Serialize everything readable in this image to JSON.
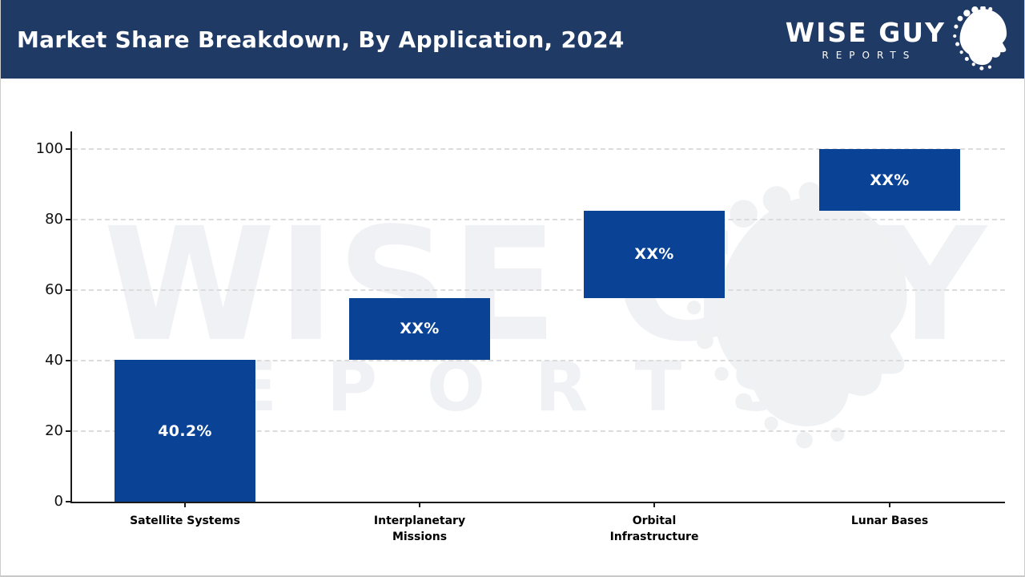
{
  "header": {
    "title": "Market Share Breakdown, By Application, 2024",
    "logo": {
      "name": "WISE GUY",
      "sub": "REPORTS"
    }
  },
  "watermark": {
    "line1": "WISE GUY",
    "line2": "REPORTS"
  },
  "chart_data": {
    "type": "bar",
    "subtype": "waterfall",
    "title": "Market Share Breakdown, By Application, 2024",
    "unit": "percent",
    "categories": [
      "Satellite Systems",
      "Interplanetary Missions",
      "Orbital Infrastructure",
      "Lunar Bases"
    ],
    "segments": [
      {
        "category": "Satellite Systems",
        "lines": [
          "Satellite Systems"
        ],
        "start": 0,
        "end": 40.2,
        "value": 40.2,
        "label": "40.2%"
      },
      {
        "category": "Interplanetary Missions",
        "lines": [
          "Interplanetary",
          "Missions"
        ],
        "start": 40.2,
        "end": 57.8,
        "value": 17.6,
        "label": "XX%"
      },
      {
        "category": "Orbital Infrastructure",
        "lines": [
          "Orbital",
          "Infrastructure"
        ],
        "start": 57.8,
        "end": 82.5,
        "value": 24.7,
        "label": "XX%"
      },
      {
        "category": "Lunar Bases",
        "lines": [
          "Lunar Bases"
        ],
        "start": 82.5,
        "end": 100,
        "value": 17.5,
        "label": "XX%"
      }
    ],
    "yticks": [
      0,
      20,
      40,
      60,
      80,
      100
    ],
    "ylim": [
      0,
      104
    ],
    "xlabel": "",
    "ylabel": "",
    "legend": null,
    "grid": {
      "axis": "y",
      "style": "dashed",
      "color": "#dcdcdc"
    },
    "bar_color": "#0a4396",
    "label_color": "#ffffff",
    "header_color": "#203a66",
    "watermark_color": "#f0f1f4"
  }
}
